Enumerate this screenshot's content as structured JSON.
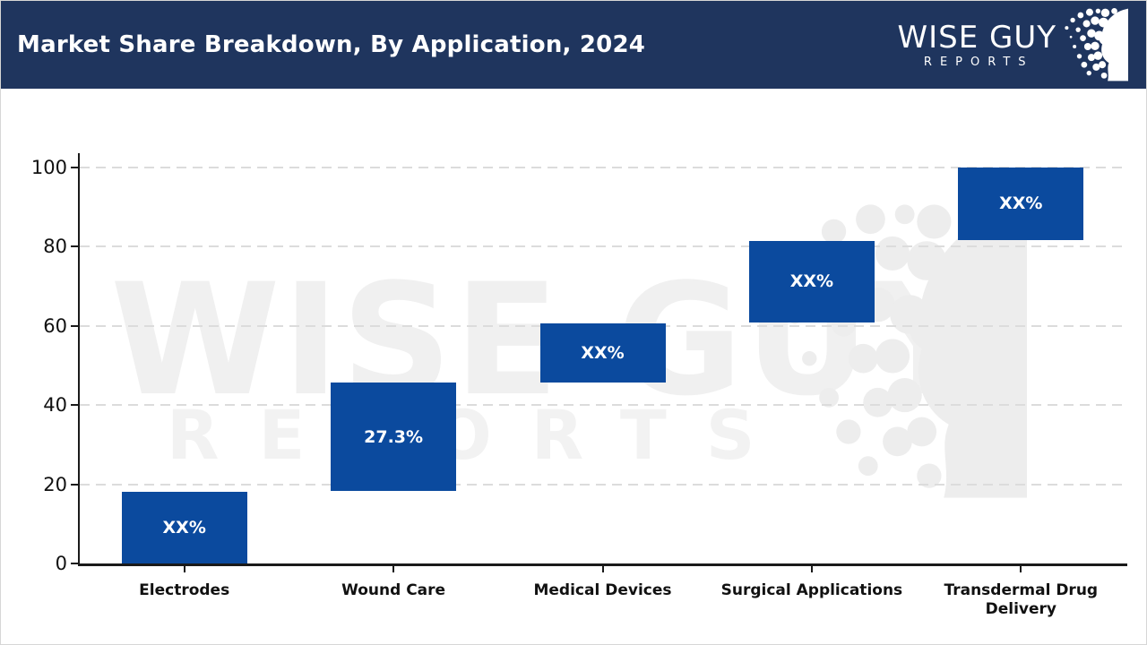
{
  "header": {
    "title": "Market Share Breakdown, By Application, 2024",
    "background_color": "#1f355e",
    "logo": {
      "line1": "WISE GUY",
      "line2": "REPORTS"
    }
  },
  "watermark": {
    "line1": "WISE GUY",
    "line2": "REPORTS"
  },
  "chart_data": {
    "type": "bar",
    "subtype": "waterfall-floating-bars",
    "title": "Market Share Breakdown, By Application, 2024",
    "categories": [
      "Electrodes",
      "Wound Care",
      "Medical Devices",
      "Surgical Applications",
      "Transdermal Drug Delivery"
    ],
    "segments": [
      {
        "label": "XX%",
        "start": 0,
        "end": 18.2
      },
      {
        "label": "27.3%",
        "start": 18.3,
        "end": 45.6
      },
      {
        "label": "XX%",
        "start": 45.7,
        "end": 60.6
      },
      {
        "label": "XX%",
        "start": 60.8,
        "end": 81.5
      },
      {
        "label": "XX%",
        "start": 81.7,
        "end": 100
      }
    ],
    "values_pct": [
      18.2,
      27.3,
      14.9,
      20.7,
      18.3
    ],
    "yticks": [
      0,
      20,
      40,
      60,
      80,
      100
    ],
    "ylim": [
      0,
      103.6
    ],
    "xlabel": "",
    "ylabel": "",
    "grid": "horizontal dashed",
    "bar_color": "#0b4a9e",
    "bar_label_color": "#ffffff",
    "axis_color": "#1a1a1a",
    "gridline_color": "#dcdcdc"
  }
}
